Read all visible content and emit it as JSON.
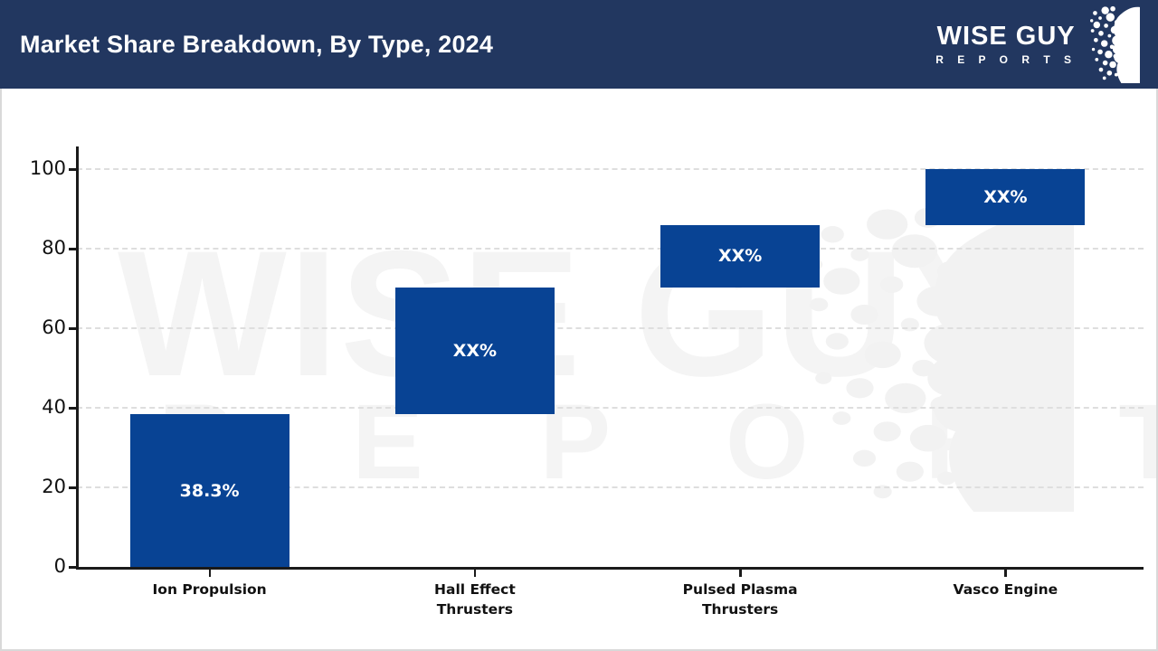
{
  "header": {
    "title": "Market Share Breakdown, By Type, 2024",
    "logo_line1": "WISE GUY",
    "logo_line2": "R E P O R T S"
  },
  "watermark": {
    "line1": "WISE GUY",
    "line2": "R E P O R T S"
  },
  "chart_data": {
    "type": "bar",
    "subtype": "waterfall",
    "title": "Market Share Breakdown, By Type, 2024",
    "categories": [
      "Ion Propulsion",
      "Hall Effect\nThrusters",
      "Pulsed Plasma\nThrusters",
      "Vasco Engine"
    ],
    "segments": [
      {
        "category": "Ion Propulsion",
        "label": "38.3%",
        "start": 0,
        "end": 38.3
      },
      {
        "category": "Hall Effect Thrusters",
        "label": "XX%",
        "start": 38.3,
        "end": 70.3
      },
      {
        "category": "Pulsed Plasma Thrusters",
        "label": "XX%",
        "start": 70.3,
        "end": 86.0
      },
      {
        "category": "Vasco Engine",
        "label": "XX%",
        "start": 86.0,
        "end": 100.0
      }
    ],
    "ylim": [
      0,
      100
    ],
    "yticks": [
      0,
      20,
      40,
      60,
      80,
      100
    ],
    "grid": "horizontal-dashed",
    "legend": "none",
    "xlabel": "",
    "ylabel": "",
    "bar_color": "#084394",
    "bar_label_color": "#ffffff"
  },
  "colors": {
    "header_bg": "#223760",
    "bar": "#084394",
    "grid": "#dedede",
    "watermark": "#f4f4f4",
    "frame": "#d9d9d9",
    "axis": "#1a1a1a"
  }
}
